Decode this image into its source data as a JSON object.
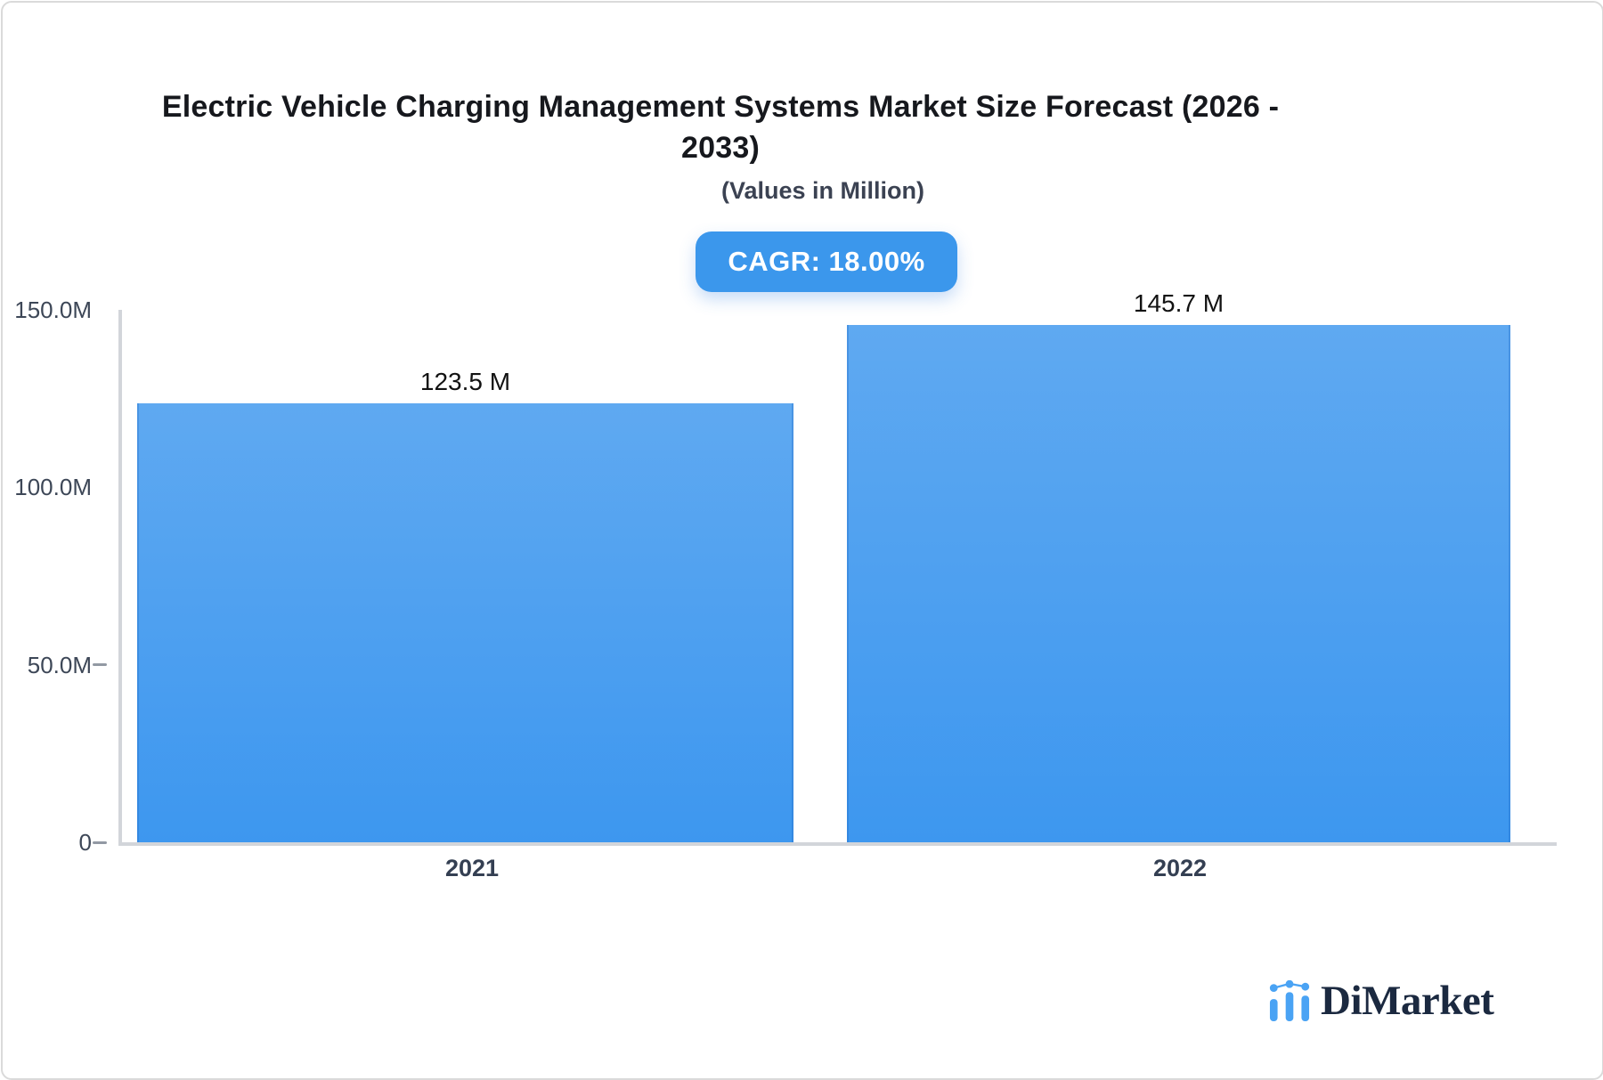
{
  "page": {
    "background": "#ffffff",
    "border_color": "#dadada"
  },
  "chart": {
    "title_line1": "Electric Vehicle Charging Management Systems Market Size Forecast (2026 -",
    "title_line2": "2033)",
    "subtitle": "(Values in Million)",
    "cagr_label": "CAGR: 18.00%",
    "badge_color": "#3b97ec",
    "axis_color": "#d2d5da",
    "bar_color_top": "#5fa9f1",
    "bar_color_bottom": "#3d97ef"
  },
  "chart_data": {
    "type": "bar",
    "title": "Electric Vehicle Charging Management Systems Market Size Forecast (2026 - 2033)",
    "subtitle": "(Values in Million)",
    "cagr": "18.00%",
    "categories": [
      "2021",
      "2022"
    ],
    "values": [
      123.5,
      145.7
    ],
    "value_labels": [
      "123.5 M",
      "145.7 M"
    ],
    "ylim": [
      0,
      150
    ],
    "yticks": [
      {
        "label": "150.0M",
        "value": 150
      },
      {
        "label": "100.0M",
        "value": 100
      },
      {
        "label": "50.0M",
        "value": 50
      },
      {
        "label": "0",
        "value": 0
      }
    ],
    "layout": {
      "grid": false,
      "legend": "none",
      "tick_dashes_at": [
        50,
        0
      ]
    }
  },
  "branding": {
    "logo_text": "DiMarket",
    "logo_icon": "bar-chart-logo-icon"
  }
}
